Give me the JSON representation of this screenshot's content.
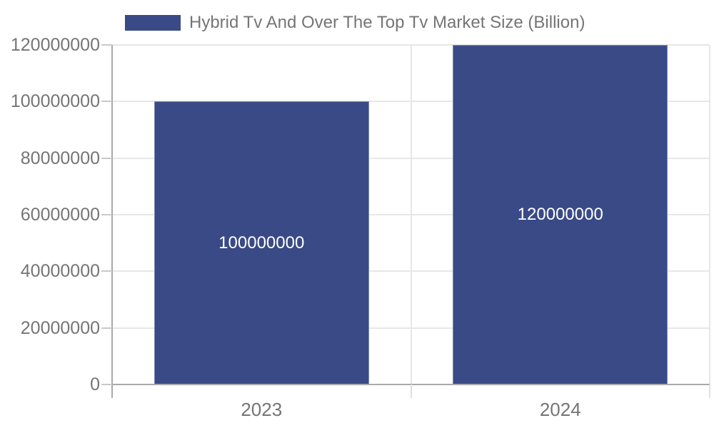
{
  "chart_data": {
    "type": "bar",
    "title": "Hybrid Tv And Over The Top Tv Market Size (Billion)",
    "categories": [
      "2023",
      "2024"
    ],
    "values": [
      100000000,
      120000000
    ],
    "bar_labels": [
      "100000000",
      "120000000"
    ],
    "xlabel": "",
    "ylabel": "",
    "ylim": [
      0,
      120000000
    ],
    "ytick_step": 20000000,
    "ytick_labels": [
      "0",
      "20000000",
      "40000000",
      "60000000",
      "80000000",
      "100000000",
      "120000000"
    ],
    "grid": true,
    "legend_position": "top",
    "bar_color": "#3A4A86",
    "bar_value_text_color": "#ffffff",
    "axis_text_color": "#757575",
    "axis_line_color": "#a9a9a9",
    "gridline_color": "#e7e7e7"
  }
}
